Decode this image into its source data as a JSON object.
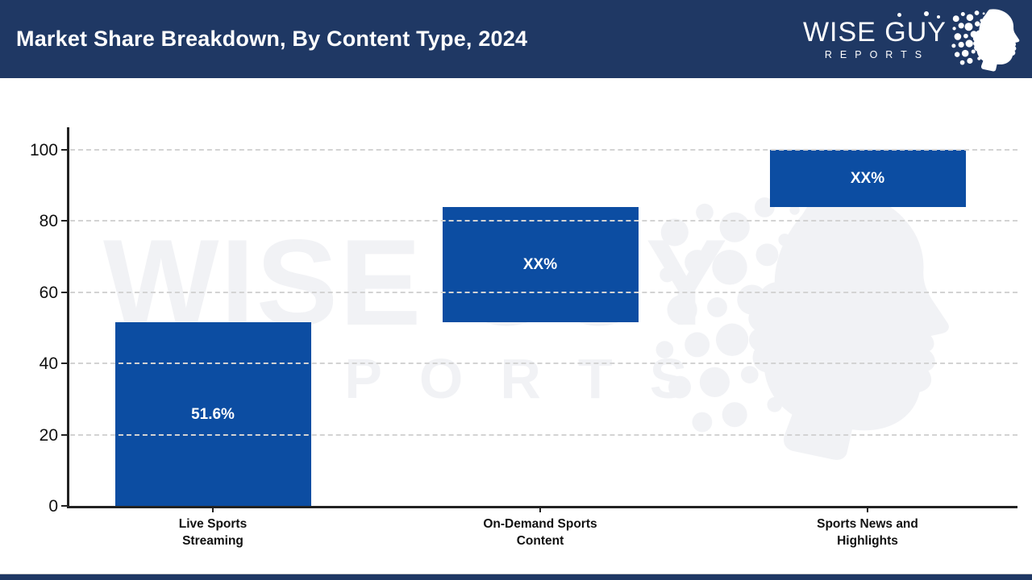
{
  "header": {
    "title": "Market Share Breakdown, By Content Type, 2024",
    "background_color": "#1f3864",
    "logo": {
      "name": "WISE GUY",
      "sub": "REPORTS"
    }
  },
  "watermark": {
    "name": "WISE GUY",
    "sub": "REPORTS",
    "color": "#f1f2f5"
  },
  "footer": {
    "background_color": "#1f3864"
  },
  "chart_data": {
    "type": "bar",
    "variant": "waterfall",
    "title": "Market Share Breakdown, By Content Type, 2024",
    "categories": [
      "Live Sports\nStreaming",
      "On-Demand Sports\nContent",
      "Sports News and\nHighlights"
    ],
    "segments": [
      {
        "category": "Live Sports Streaming",
        "start": 0,
        "end": 51.6,
        "label": "51.6%"
      },
      {
        "category": "On-Demand Sports Content",
        "start": 51.6,
        "end": 84,
        "label": "XX%"
      },
      {
        "category": "Sports News and Highlights",
        "start": 84,
        "end": 100,
        "label": "XX%"
      }
    ],
    "yticks": [
      0,
      20,
      40,
      60,
      80,
      100
    ],
    "ylim": [
      0,
      106
    ],
    "xlabel": "",
    "ylabel": "",
    "grid": "horizontal-dashed",
    "legend": "none",
    "bar_color": "#0c4da2",
    "bar_label_color": "#ffffff",
    "gridline_color": "#d3d3d3",
    "axis_color": "#222222"
  }
}
